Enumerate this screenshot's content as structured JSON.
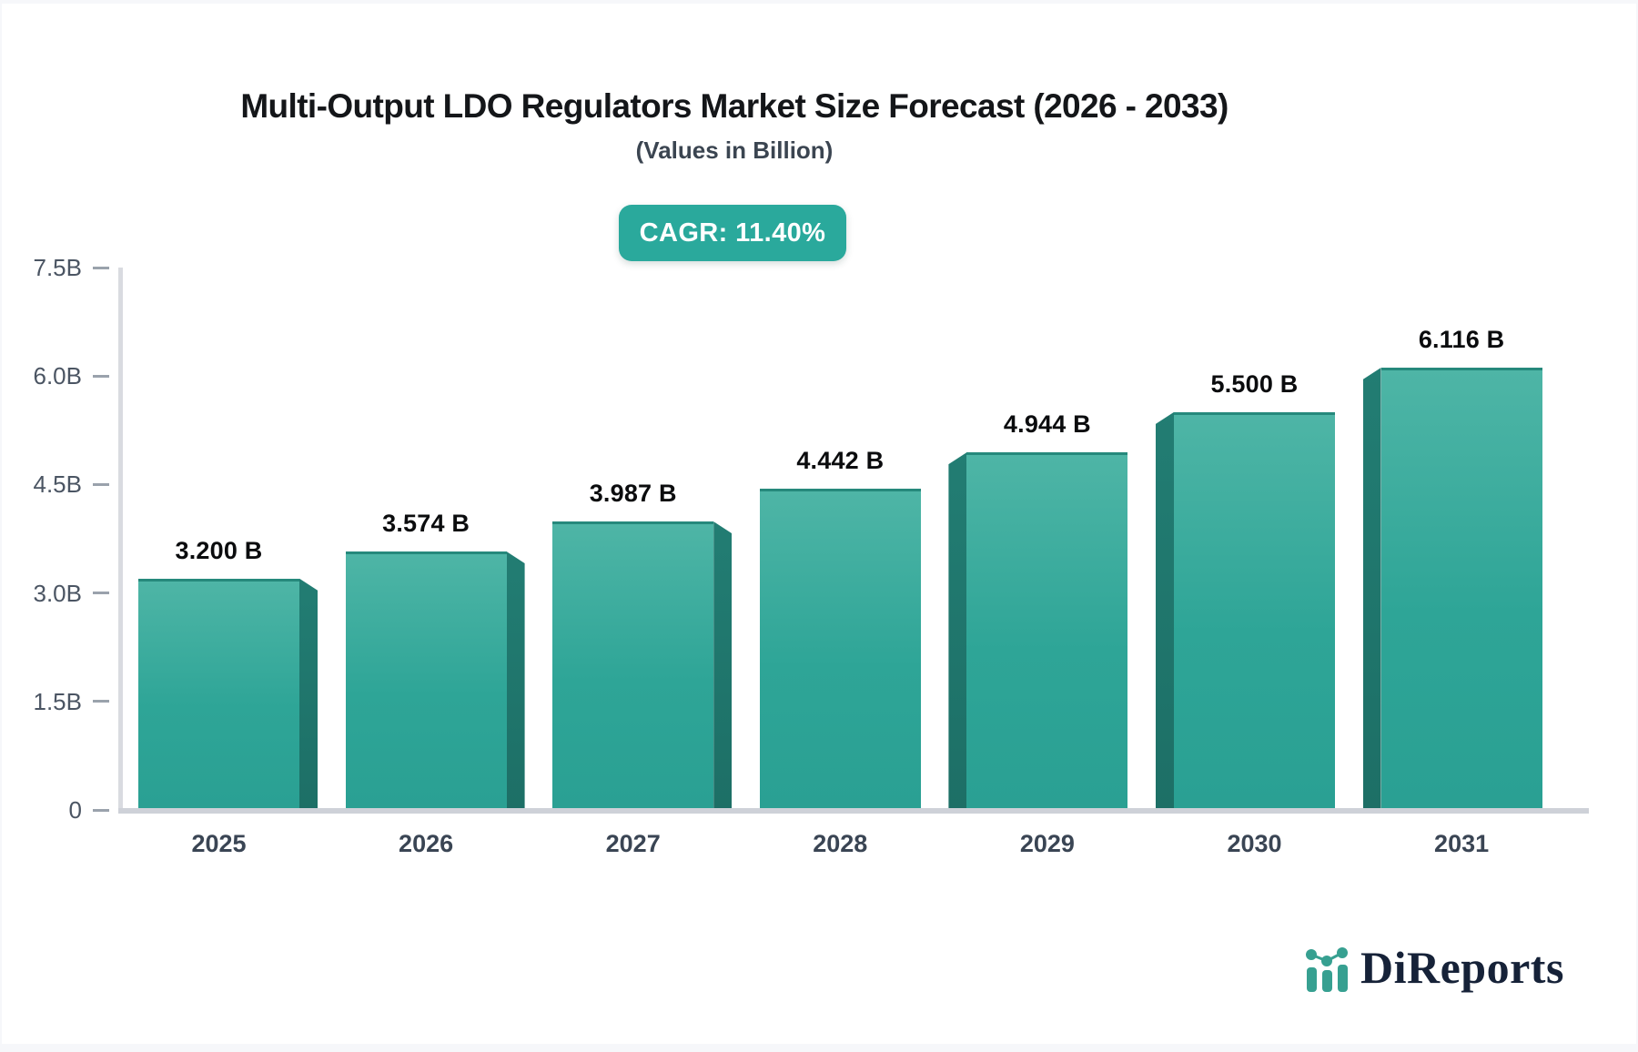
{
  "chart_data": {
    "type": "bar",
    "title": "Multi-Output LDO Regulators Market Size Forecast (2026 - 2033)",
    "subtitle": "(Values in Billion)",
    "annotation": "CAGR: 11.40%",
    "categories": [
      "2025",
      "2026",
      "2027",
      "2028",
      "2029",
      "2030",
      "2031"
    ],
    "values": [
      3.2,
      3.574,
      3.987,
      4.442,
      4.944,
      5.5,
      6.116
    ],
    "value_labels": [
      "3.200 B",
      "3.574 B",
      "3.987 B",
      "4.442 B",
      "4.944 B",
      "5.500 B",
      "6.116 B"
    ],
    "y_ticks": [
      {
        "value": 7.5,
        "label": "7.5B"
      },
      {
        "value": 6.0,
        "label": "6.0B"
      },
      {
        "value": 4.5,
        "label": "4.5B"
      },
      {
        "value": 3.0,
        "label": "3.0B"
      },
      {
        "value": 1.5,
        "label": "1.5B"
      },
      {
        "value": 0,
        "label": "0"
      }
    ],
    "ylim": [
      0,
      7.5
    ],
    "xlabel": "",
    "ylabel": "",
    "grid": false,
    "legend": false,
    "bar_style": "3d-extruded"
  },
  "logo": {
    "text": "DiReports",
    "icon": "mini-bar-line-chart-icon"
  },
  "colors": {
    "badge_bg": "#2aa99c",
    "bar_face_top": "#4eb5a6",
    "bar_face_bottom": "#2aa093",
    "bar_face_edge": "#26897c",
    "bar_side": "#1f7b71",
    "axis_line": "#d9dbe0",
    "tick_label": "#4b5563",
    "category_label": "#3a4554",
    "value_label": "#0b0c0e",
    "title": "#141619",
    "logo_navy": "#162238",
    "logo_teal": "#37a091"
  }
}
